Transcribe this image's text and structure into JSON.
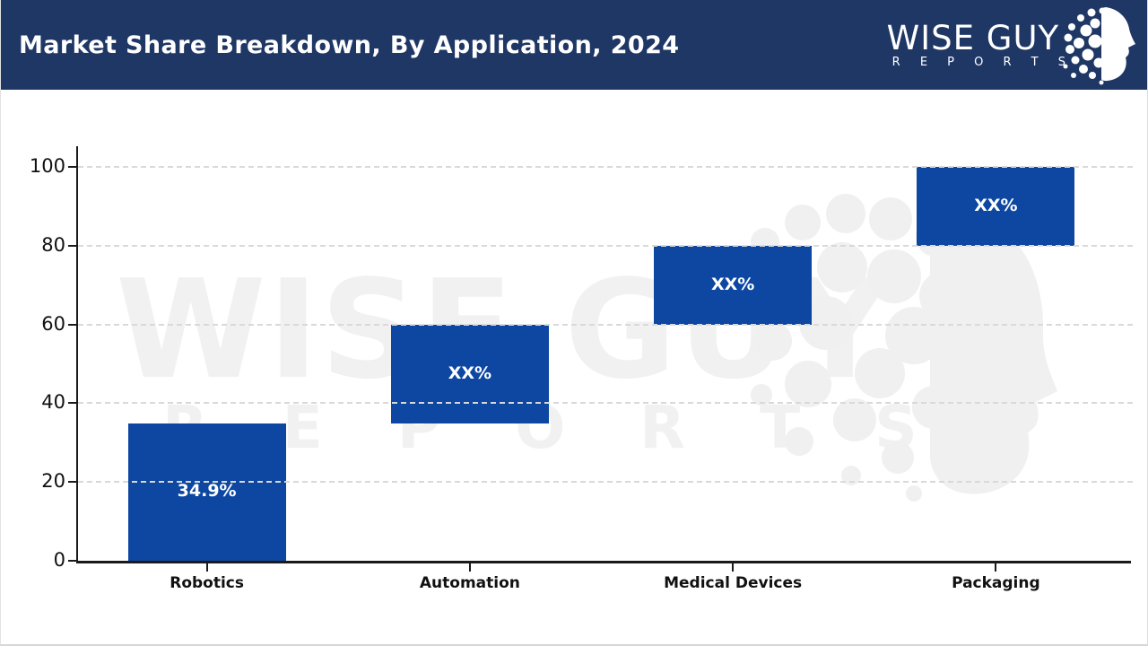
{
  "page": {
    "background": "#ffffff",
    "border_color": "#d6d6d6"
  },
  "header": {
    "bg_color": "#1f3765",
    "title": "Market Share Breakdown, By Application, 2024",
    "logo": {
      "wordmark": "WISE GUY",
      "subtext": "R E P O R T S",
      "head_icon_color": "#ffffff"
    }
  },
  "watermark": {
    "wordmark": "WISE GUY",
    "subtext": "R E P O R T S",
    "color": "#f1f1f1"
  },
  "chart_data": {
    "type": "bar",
    "subtype": "floating-segment-waterfall",
    "title": "Market Share Breakdown, By Application, 2024",
    "categories": [
      "Robotics",
      "Automation",
      "Medical Devices",
      "Packaging"
    ],
    "segments": [
      {
        "category": "Robotics",
        "start": 0,
        "end": 34.9,
        "label": "34.9%"
      },
      {
        "category": "Automation",
        "start": 34.9,
        "end": 60,
        "label": "XX%"
      },
      {
        "category": "Medical Devices",
        "start": 60,
        "end": 80,
        "label": "XX%"
      },
      {
        "category": "Packaging",
        "start": 80,
        "end": 100,
        "label": "XX%"
      }
    ],
    "bar_color": "#0d47a1",
    "bar_label_color": "#ffffff",
    "ylim": [
      0,
      100
    ],
    "yticks": [
      0,
      20,
      40,
      60,
      80,
      100
    ],
    "xlabel": "",
    "ylabel": "",
    "grid": {
      "axis": "y",
      "style": "dashed",
      "color": "#d9d9d9",
      "drawn_over_bars": true
    },
    "legend": "none",
    "axis_color": "#1a1a1a"
  }
}
